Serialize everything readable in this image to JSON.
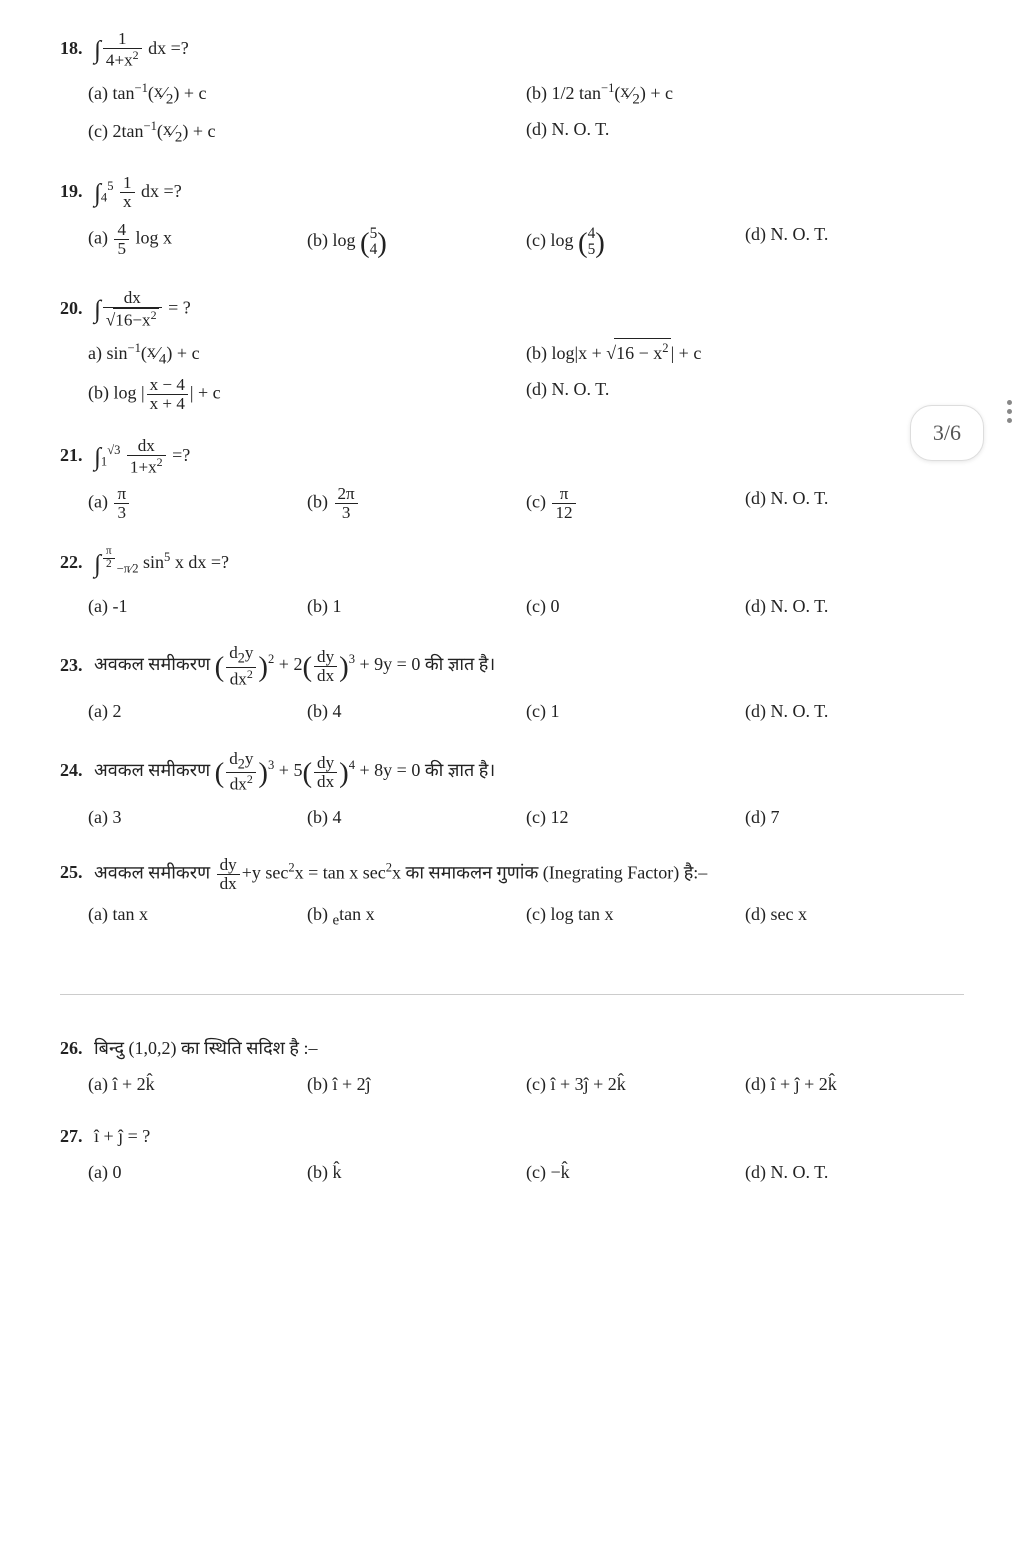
{
  "page_indicator": "3/6",
  "questions": [
    {
      "num": "18.",
      "stem_html": "<span class='int'>∫</span><span class='frac'><span class='n'>1</span><span class='d'>4+x<span class='sup'>2</span></span></span> dx =?",
      "layout": "col2",
      "opts": [
        "(a) tan<span class='sup'>−1</span>(<span class='jh'>x</span>⁄<sub>2</sub>) + c",
        "(b) 1/2 tan<span class='sup'>−1</span>(<span class='jh'>x</span>⁄<sub>2</sub>) + c",
        "(c) 2tan<span class='sup'>−1</span>(<span class='jh'>x</span>⁄<sub>2</sub>) + c",
        "(d) N. O. T."
      ]
    },
    {
      "num": "19.",
      "stem_html": "<span class='int'>∫</span><span class='sub'>4</span><span class='sup'>5</span> <span class='frac'><span class='n'>1</span><span class='d'>x</span></span> dx =?",
      "layout": "col4",
      "opts": [
        "(a) <span class='frac'><span class='n'>4</span><span class='d'>5</span></span> log x",
        "(b) log <span class='paren'>(</span><span class='binom'><span class='t'>5</span><span class='b'>4</span></span><span class='paren'>)</span>",
        "(c) log <span class='paren'>(</span><span class='binom'><span class='t'>4</span><span class='b'>5</span></span><span class='paren'>)</span>",
        "(d) N. O. T."
      ]
    },
    {
      "num": "20.",
      "stem_html": "<span class='int'>∫</span><span class='frac'><span class='n'>dx</span><span class='d'>√<span class='sqrt'>16−x<span class='sup'>2</span></span></span></span> = ?",
      "layout": "col2",
      "opts": [
        "a) sin<span class='sup'>−1</span>(<span class='jh'>x</span>⁄<sub>4</sub>) + c",
        "(b) log|x + √<span class='sqrt'>16 − x<span class='sup'>2</span></span>| + c",
        "(b) log |<span class='frac'><span class='n'>x − 4</span><span class='d'>x + 4</span></span>| + c",
        "(d) N. O. T."
      ]
    },
    {
      "num": "21.",
      "stem_html": "<span class='int'>∫</span><span class='sub'>1</span><span class='sup'>√3</span> <span class='frac'><span class='n'>dx</span><span class='d'>1+x<span class='sup'>2</span></span></span> =?",
      "layout": "col4",
      "opts": [
        "(a) <span class='frac'><span class='n'>π</span><span class='d'>3</span></span>",
        "(b) <span class='frac'><span class='n'>2π</span><span class='d'>3</span></span>",
        "(c) <span class='frac'><span class='n'>π</span><span class='d'>12</span></span>",
        "(d) N. O. T."
      ]
    },
    {
      "num": "22.",
      "stem_html": "<span class='int'>∫</span><span class='sup'><span class='frac' style='font-size:0.9em'><span class='n'>π</span><span class='d'>2</span></span></span><span class='sub'>−π⁄2</span> sin<span class='sup'>5</span> x dx =?",
      "layout": "col4",
      "opts": [
        "(a) -1",
        "(b) 1",
        "(c) 0",
        "(d) N. O. T."
      ]
    },
    {
      "num": "23.",
      "stem_html": "अवकल समीकरण <span class='paren'>(</span><span class='frac'><span class='n'>d<sub>2</sub>y</span><span class='d'>dx<span class='sup'>2</span></span></span><span class='paren'>)</span><span class='sup'>2</span> + 2<span class='paren'>(</span><span class='frac'><span class='n'>dy</span><span class='d'>dx</span></span><span class='paren'>)</span><span class='sup'>3</span> + 9y = 0 की ज्ञात है।",
      "layout": "col4",
      "opts": [
        "(a) 2",
        "(b) 4",
        "(c) 1",
        "(d) N. O. T."
      ]
    },
    {
      "num": "24.",
      "stem_html": "अवकल समीकरण <span class='paren'>(</span><span class='frac'><span class='n'>d<sub>2</sub>y</span><span class='d'>dx<span class='sup'>2</span></span></span><span class='paren'>)</span><span class='sup'>3</span> + 5<span class='paren'>(</span><span class='frac'><span class='n'>dy</span><span class='d'>dx</span></span><span class='paren'>)</span><span class='sup'>4</span> + 8y = 0 की ज्ञात है।",
      "layout": "col4",
      "opts": [
        "(a) 3",
        "(b) 4",
        "(c) 12",
        "(d) 7"
      ]
    },
    {
      "num": "25.",
      "stem_html": "अवकल समीकरण <span class='frac'><span class='n'>dy</span><span class='d'>dx</span></span>+y sec<span class='sup'>2</span>x = tan x sec<span class='sup'>2</span>x का समाकलन गुणांक (Inegrating Factor) है:–",
      "layout": "col4",
      "opts": [
        "(a) tan x",
        "(b) <sub>e</sub>tan x",
        "(c) log tan x",
        "(d) sec x"
      ]
    },
    {
      "num": "26.",
      "stem_html": "बिन्दु (1,0,2) का स्थिति सदिश है :–",
      "layout": "col4",
      "opts": [
        "(a) î + 2k̂",
        "(b) î + 2ĵ",
        "(c) î + 3ĵ + 2k̂",
        "(d) î + ĵ + 2k̂"
      ]
    },
    {
      "num": "27.",
      "stem_html": "î + ĵ = ?",
      "layout": "col4",
      "opts": [
        "(a) 0",
        "(b) k̂",
        "(c) −k̂",
        "(d) N. O. T."
      ]
    }
  ]
}
